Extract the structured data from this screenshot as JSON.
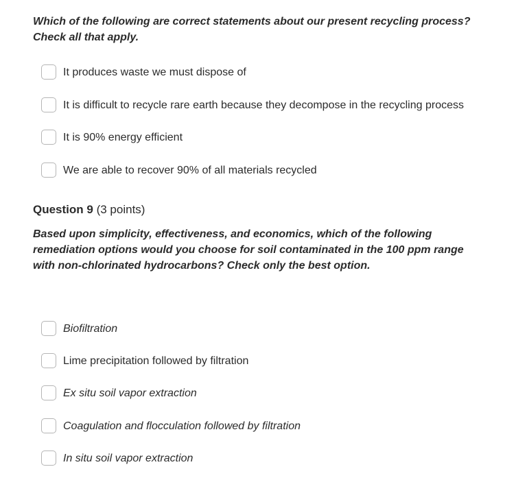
{
  "q1": {
    "prompt": "Which of the following are correct statements about our present recycling process? Check all that apply.",
    "options": [
      "It produces waste we must dispose of",
      "It is difficult to recycle rare earth because they decompose in the recycling process",
      "It is 90% energy efficient",
      "We are able to recover 90% of all materials recycled"
    ],
    "option_italic": [
      false,
      false,
      false,
      false
    ]
  },
  "q2": {
    "header_label": "Question 9",
    "header_points": "(3 points)",
    "prompt": "Based upon simplicity, effectiveness, and economics, which of the following remediation options would you choose for soil contaminated in the 100 ppm range with non-chlorinated hydrocarbons?  Check only the best option.",
    "options": [
      "Biofiltration",
      "Lime precipitation followed by filtration",
      "Ex situ soil vapor extraction",
      "Coagulation and flocculation followed by filtration",
      "In situ soil vapor extraction"
    ],
    "option_italic": [
      true,
      false,
      true,
      true,
      true
    ]
  },
  "style": {
    "text_color": "#2b2b2b",
    "checkbox_border": "#b5b5b5",
    "background": "#ffffff",
    "font_size_prompt": 16,
    "font_size_option": 16
  }
}
